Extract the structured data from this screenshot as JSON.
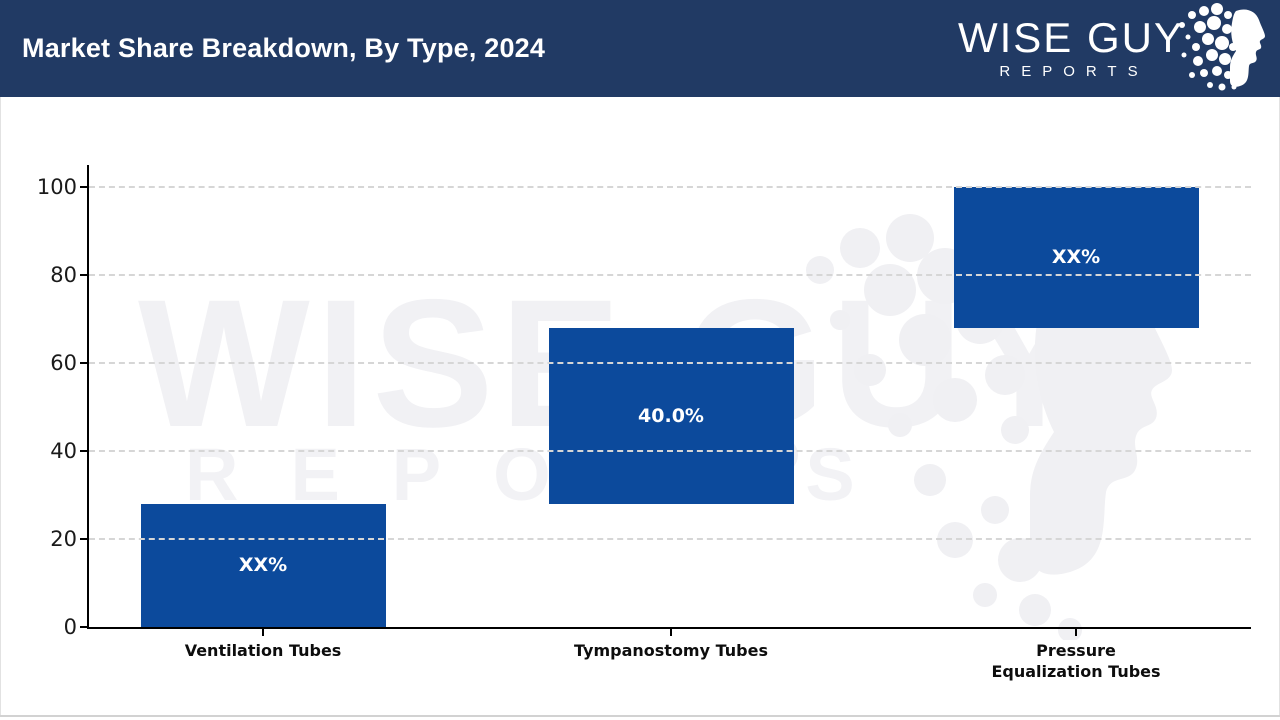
{
  "header": {
    "title": "Market Share Breakdown, By Type, 2024",
    "logo": {
      "line1": "WISE GUY",
      "line2": "REPORTS"
    }
  },
  "watermark": {
    "line1": "WISE GUY",
    "line2": "REPORTS"
  },
  "colors": {
    "header_bg": "#213a64",
    "bar": "#0c4a9c",
    "grid": "#d6d6d6",
    "axis": "#000000",
    "bar_label": "#ffffff",
    "watermark": "#f1f1f4"
  },
  "chart_data": {
    "type": "bar",
    "subtype": "waterfall",
    "title": "Market Share Breakdown, By Type, 2024",
    "categories": [
      "Ventilation Tubes",
      "Tympanostomy Tubes",
      "Pressure\nEqualization Tubes"
    ],
    "segments": [
      {
        "category": "Ventilation Tubes",
        "start": 0,
        "end": 28,
        "value_label": "XX%"
      },
      {
        "category": "Tympanostomy Tubes",
        "start": 28,
        "end": 68,
        "value_label": "40.0%"
      },
      {
        "category": "Pressure Equalization Tubes",
        "start": 68,
        "end": 100,
        "value_label": "XX%"
      }
    ],
    "xlabel": "",
    "ylabel": "",
    "ylim": [
      0,
      100
    ],
    "yticks": [
      0,
      20,
      40,
      60,
      80,
      100
    ],
    "ytick_labels": [
      "0",
      "20",
      "40",
      "60",
      "80",
      "100"
    ],
    "grid": "horizontal-dashed",
    "legend": "none"
  }
}
